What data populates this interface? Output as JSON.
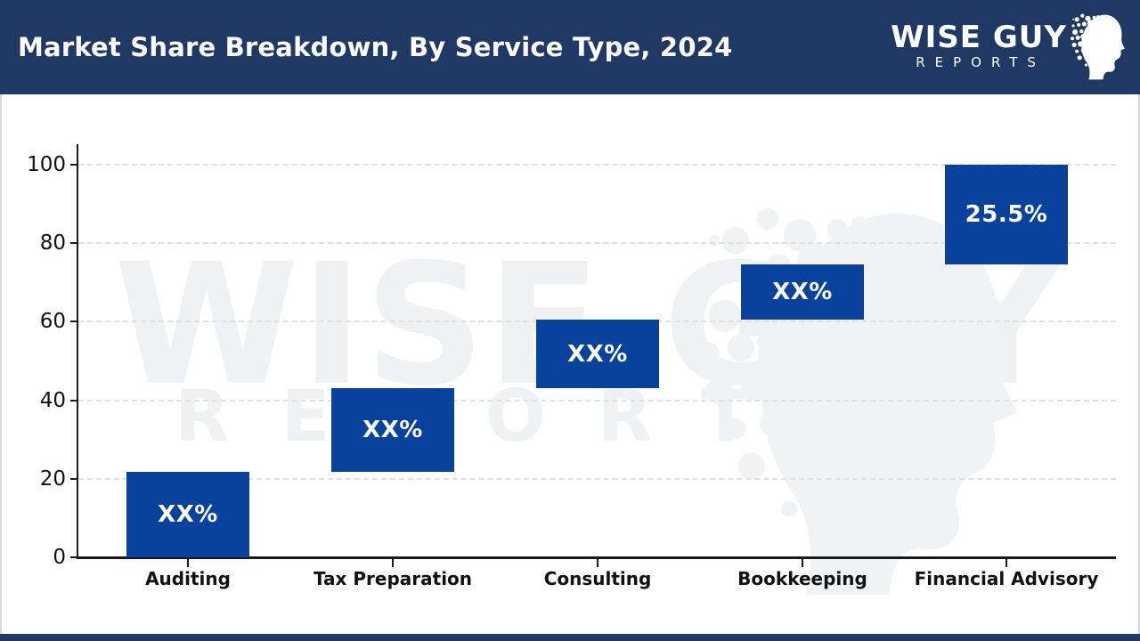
{
  "header": {
    "title": "Market Share Breakdown, By Service Type, 2024",
    "logo": {
      "line1": "WISE GUY",
      "line2": "REPORTS"
    }
  },
  "watermark": {
    "line1": "WISE GUY",
    "line2": "REPORTS"
  },
  "colors": {
    "header_bg": "#1f3864",
    "footer_bg": "#1f3864",
    "bar": "#08429c",
    "bar_label_text": "#ffffff",
    "grid": "#e0e0e0",
    "axis": "#1a1a1a",
    "watermark": "#f0f1f3"
  },
  "chart_data": {
    "type": "bar",
    "subtype": "waterfall",
    "title": "Market Share Breakdown, By Service Type, 2024",
    "categories": [
      "Auditing",
      "Tax Preparation",
      "Consulting",
      "Bookkeeping",
      "Financial Advisory"
    ],
    "segments": [
      {
        "category": "Auditing",
        "start": 0,
        "end": 21.8,
        "label": "XX%"
      },
      {
        "category": "Tax Preparation",
        "start": 21.8,
        "end": 43.0,
        "label": "XX%"
      },
      {
        "category": "Consulting",
        "start": 43.0,
        "end": 60.5,
        "label": "XX%"
      },
      {
        "category": "Bookkeeping",
        "start": 60.5,
        "end": 74.5,
        "label": "XX%"
      },
      {
        "category": "Financial Advisory",
        "start": 74.5,
        "end": 100,
        "label": "25.5%",
        "value_pct": 25.5
      }
    ],
    "xlabel": "",
    "ylabel": "",
    "yticks": [
      0,
      20,
      40,
      60,
      80,
      100
    ],
    "ylim": [
      0,
      105
    ],
    "grid": "horizontal-dashed",
    "legend": "none",
    "bar_value_labels_masked": "XX%"
  }
}
